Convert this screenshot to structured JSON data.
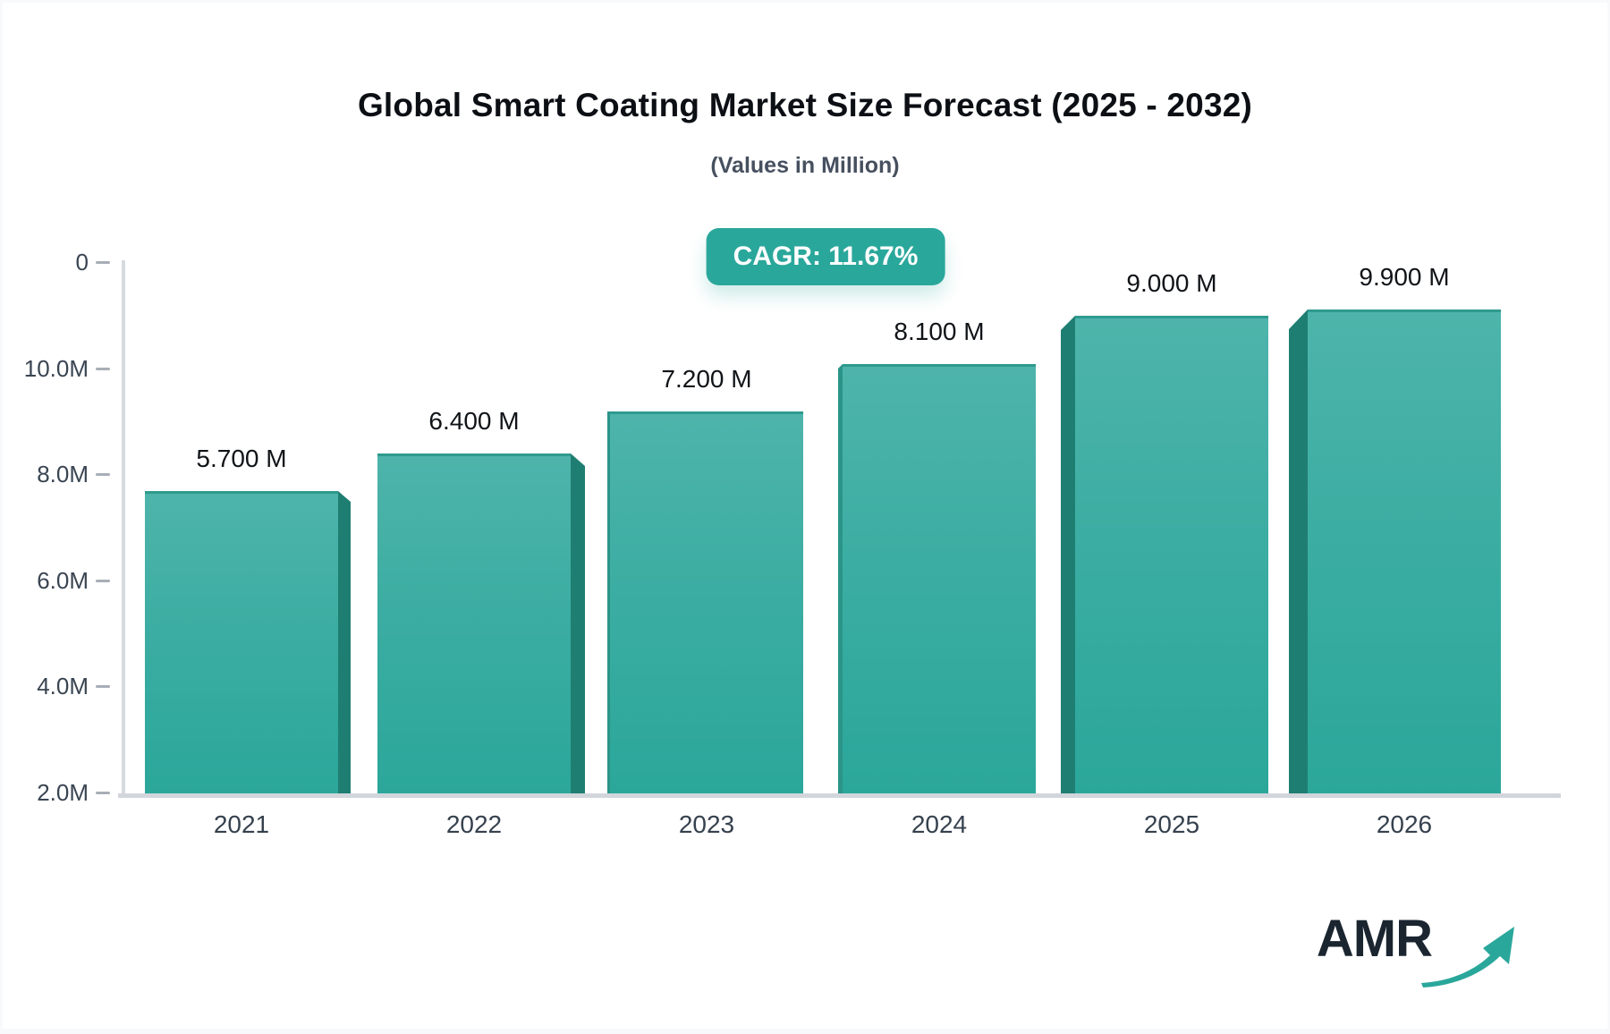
{
  "title": "Global Smart Coating Market Size Forecast (2025 - 2032)",
  "subtitle": "(Values in Million)",
  "badge": {
    "label": "CAGR: 11.67%",
    "bg_color": "#2aa79b",
    "text_color": "#ffffff"
  },
  "chart_data": {
    "type": "bar",
    "title": "Global Smart Coating Market Size Forecast (2025 - 2032)",
    "subtitle": "(Values in Million)",
    "unit": "Million",
    "cagr": "11.67%",
    "categories": [
      "2021",
      "2022",
      "2023",
      "2024",
      "2025",
      "2026"
    ],
    "values": [
      5.7,
      6.4,
      7.2,
      8.1,
      9.0,
      9.9
    ],
    "value_labels": [
      "5.700 M",
      "6.400 M",
      "7.200 M",
      "8.100 M",
      "9.000 M",
      "9.900 M"
    ],
    "ylim": [
      0,
      10
    ],
    "ytick_labels": [
      "10.0M",
      "8.0M",
      "6.0M",
      "4.0M",
      "2.0M",
      "0"
    ],
    "grid": "off",
    "legend": "none",
    "bar_face_top_color": "#4eb4ab",
    "bar_face_bottom_color": "#2ba79a",
    "bar_side_color": "#1f7e72",
    "axis_color": "#d6dade"
  },
  "logo": {
    "text": "AMR",
    "text_color": "#1a2530",
    "arrow_color": "#2aa79b"
  }
}
